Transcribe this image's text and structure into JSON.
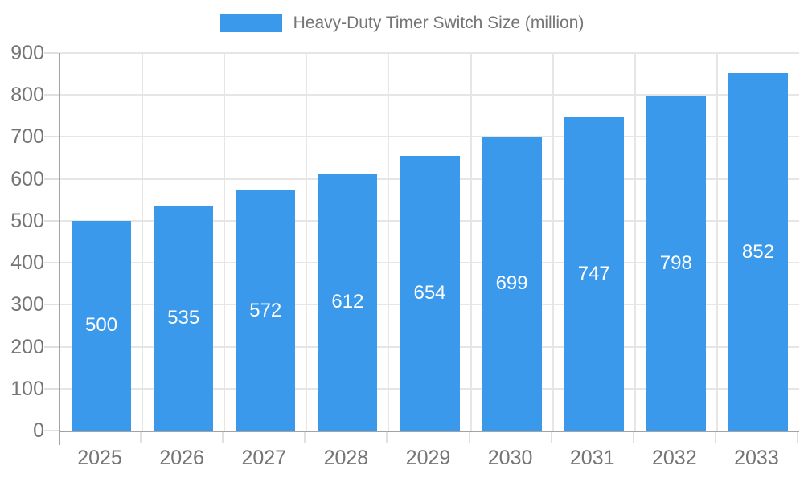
{
  "page": {
    "background": "#ffffff"
  },
  "legend": {
    "label": "Heavy-Duty Timer Switch Size (million)",
    "swatch_color": "#3b99ec"
  },
  "chart_data": {
    "type": "bar",
    "title": "Heavy-Duty Timer Switch Size (million)",
    "categories": [
      "2025",
      "2026",
      "2027",
      "2028",
      "2029",
      "2030",
      "2031",
      "2032",
      "2033"
    ],
    "values": [
      500,
      535,
      572,
      612,
      654,
      699,
      747,
      798,
      852
    ],
    "series": [
      {
        "name": "Heavy-Duty Timer Switch Size (million)",
        "values": [
          500,
          535,
          572,
          612,
          654,
          699,
          747,
          798,
          852
        ],
        "color": "#3b99ec"
      }
    ],
    "xlabel": "",
    "ylabel": "",
    "ylim": [
      0,
      900
    ],
    "yticks": [
      0,
      100,
      200,
      300,
      400,
      500,
      600,
      700,
      800,
      900
    ],
    "grid": true,
    "legend_position": "top-center",
    "bar_label_position": "inside-center",
    "bar_label_color": "#ffffff",
    "axis_text_color": "#757575",
    "grid_color": "#e6e6e6",
    "axis_line_color": "#a3a3a3"
  }
}
